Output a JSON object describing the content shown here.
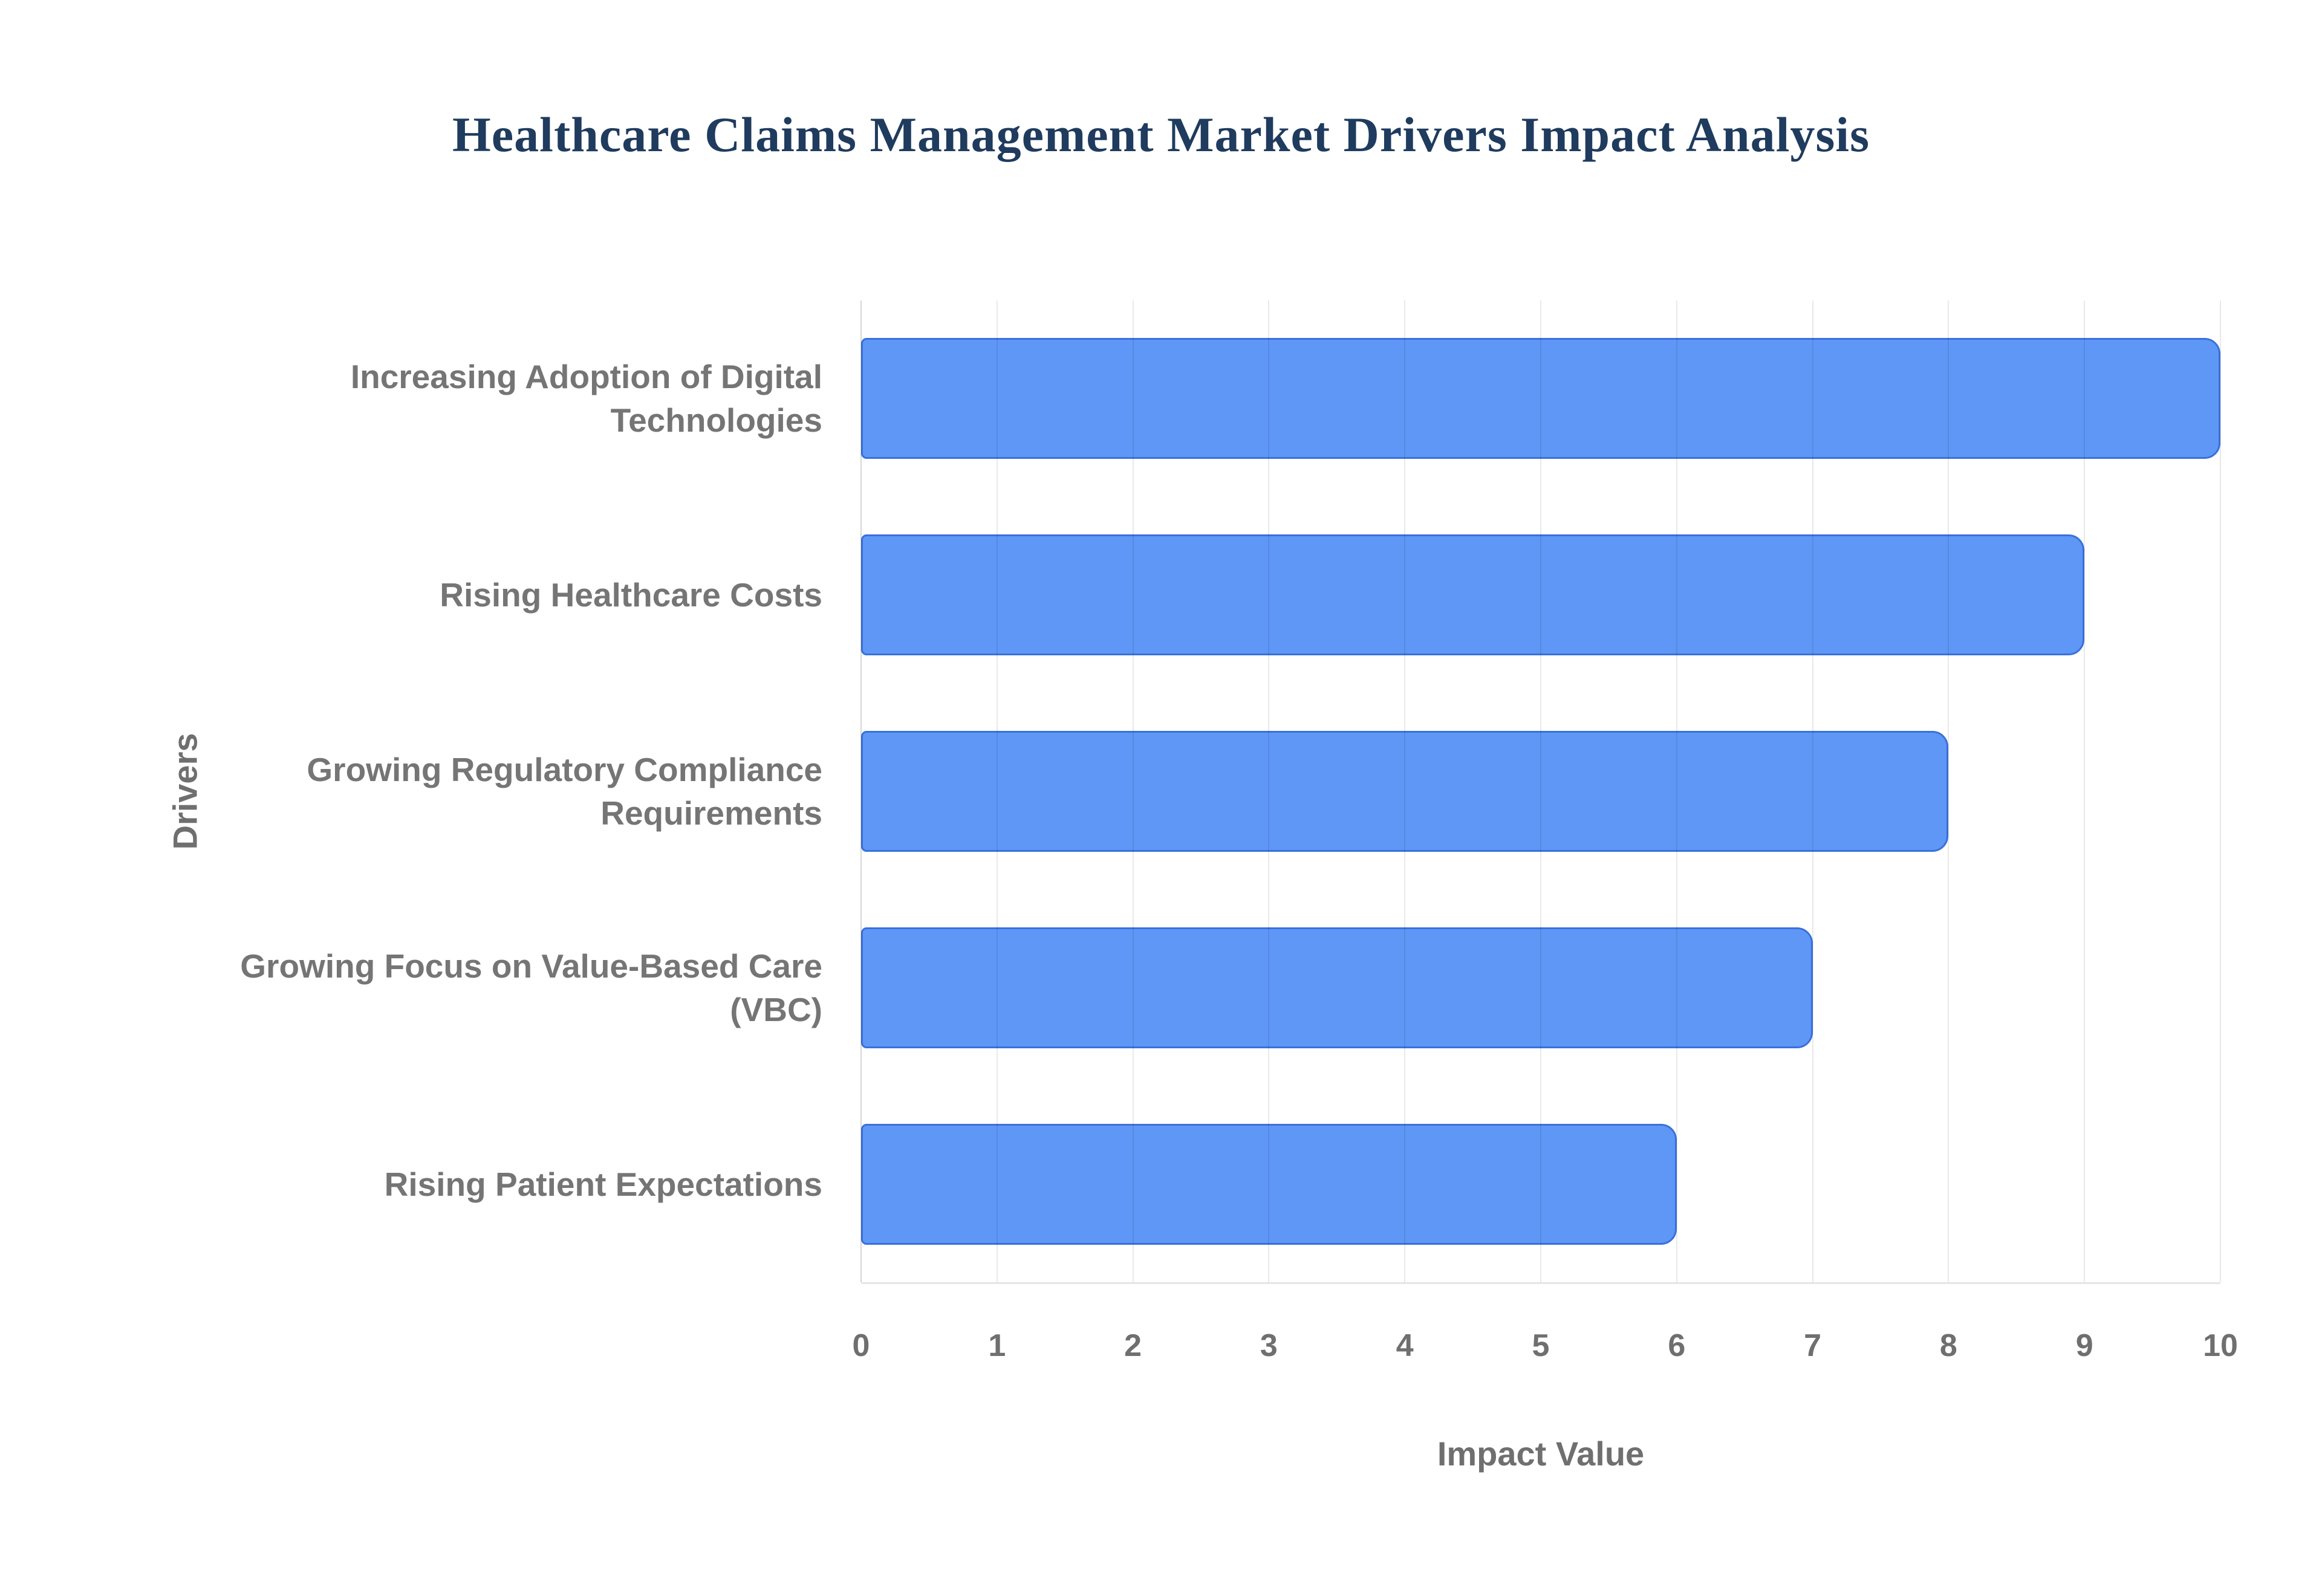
{
  "chart_data": {
    "type": "bar",
    "orientation": "horizontal",
    "title": "Healthcare Claims Management Market Drivers Impact Analysis",
    "categories": [
      "Increasing Adoption of Digital Technologies",
      "Rising Healthcare Costs",
      "Growing Regulatory Compliance Requirements",
      "Growing Focus on Value-Based Care (VBC)",
      "Rising Patient Expectations"
    ],
    "values": [
      10,
      9,
      8,
      7,
      6
    ],
    "xlabel": "Impact Value",
    "ylabel": "Drivers",
    "xlim": [
      0,
      10
    ],
    "xticks": [
      0,
      1,
      2,
      3,
      4,
      5,
      6,
      7,
      8,
      9,
      10
    ],
    "grid": true,
    "legend": "none",
    "colors": {
      "bar_fill": "#5f97f6",
      "bar_border": "#3a70dc",
      "title_text": "#1f3b5e",
      "label_text": "#757575",
      "gridline": "#e6e6e6"
    }
  }
}
